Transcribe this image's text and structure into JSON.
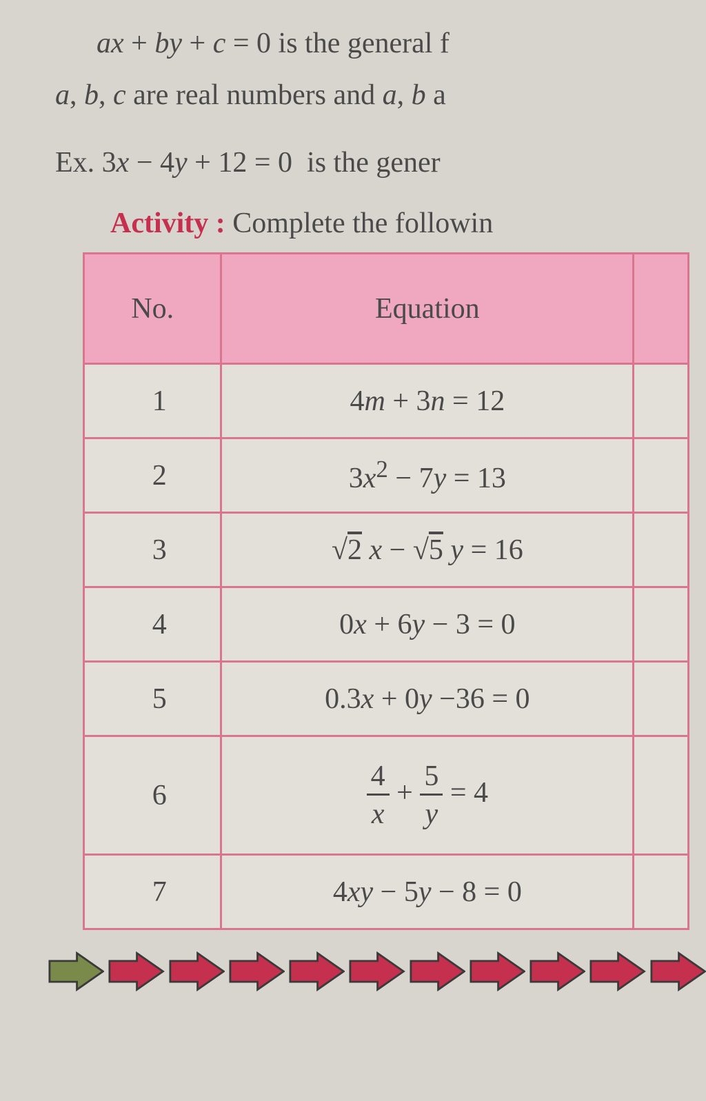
{
  "intro": {
    "line1_html": "<span class=\"italic\">ax</span> + <span class=\"italic\">by</span> + <span class=\"italic\">c</span> = 0 is the general f",
    "line2_html": "<span class=\"italic\">a</span>, <span class=\"italic\">b</span>, <span class=\"italic\">c</span> are real numbers and <span class=\"italic\">a</span>, <span class=\"italic\">b</span> a"
  },
  "example_html": "Ex. 3<span class=\"italic\">x</span> &minus; 4<span class=\"italic\">y</span> + 12 = 0&nbsp;&nbsp;is the gener",
  "activity": {
    "label": "Activity :",
    "text": " Complete the followin"
  },
  "table": {
    "border_color": "#d9758e",
    "header_bg": "#f0a8c0",
    "cell_bg": "#e2e0d8",
    "text_color": "#4a4a4a",
    "font_size_pt": 32,
    "columns": [
      "No.",
      "Equation",
      ""
    ],
    "rows": [
      {
        "no": "1",
        "eq_html": "4<span class=\"italic\">m</span> + 3<span class=\"italic\">n</span> = 12"
      },
      {
        "no": "2",
        "eq_html": "3<span class=\"italic\">x</span><sup>2</sup> &minus; 7<span class=\"italic\">y</span> = 13"
      },
      {
        "no": "3",
        "eq_html": "&radic;<span class=\"sqrt\">2</span> <span class=\"italic\">x</span> &minus; &radic;<span class=\"sqrt\">5</span> <span class=\"italic\">y</span> = 16"
      },
      {
        "no": "4",
        "eq_html": "0<span class=\"italic\">x</span> + 6<span class=\"italic\">y</span> &minus; 3 = 0"
      },
      {
        "no": "5",
        "eq_html": "0.3<span class=\"italic\">x</span> + 0<span class=\"italic\">y</span> &minus;36 = 0"
      },
      {
        "no": "6",
        "eq_html": "<span class=\"frac\"><span class=\"num\">4</span><span class=\"den italic\">x</span></span> + <span class=\"frac\"><span class=\"num\">5</span><span class=\"den italic\">y</span></span> = 4",
        "tall": true
      },
      {
        "no": "7",
        "eq_html": "4<span class=\"italic\">xy</span> &minus; 5<span class=\"italic\">y</span> &minus; 8 = 0"
      }
    ]
  },
  "arrows": {
    "count": 11,
    "fill": "#c5304f",
    "first_fill": "#7a8a4a",
    "outline": "#3a3a3a"
  }
}
